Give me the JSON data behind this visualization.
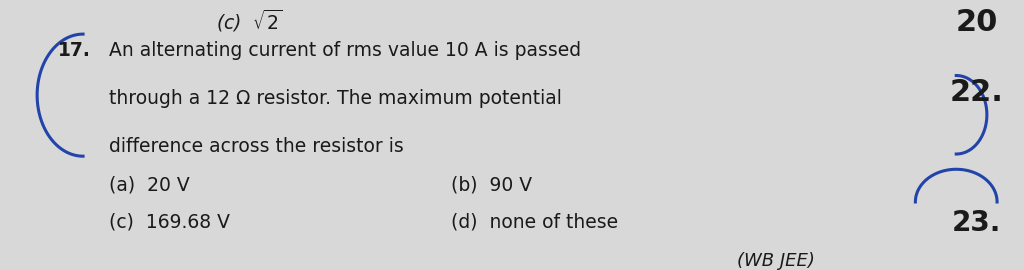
{
  "background_color": "#d8d8d8",
  "top_left_text": "(c)  √2",
  "number_20": "20",
  "number_22": "22.",
  "number_23": "23.",
  "question_number": "17.",
  "question_line1": "An alternating current of rms value 10 A is passed",
  "question_line2": "through a 12 Ω resistor. The maximum potential",
  "question_line3": "difference across the resistor is",
  "option_a": "(a)  20 V",
  "option_b": "(b)  90 V",
  "option_c": "(c)  169.68 V",
  "option_d": "(d)  none of these",
  "source": "(WB JEE)",
  "text_color": "#1a1a1a",
  "font_size_question": 13.5,
  "font_size_options": 13.5,
  "font_size_source": 13.0,
  "font_size_numbers": 22
}
